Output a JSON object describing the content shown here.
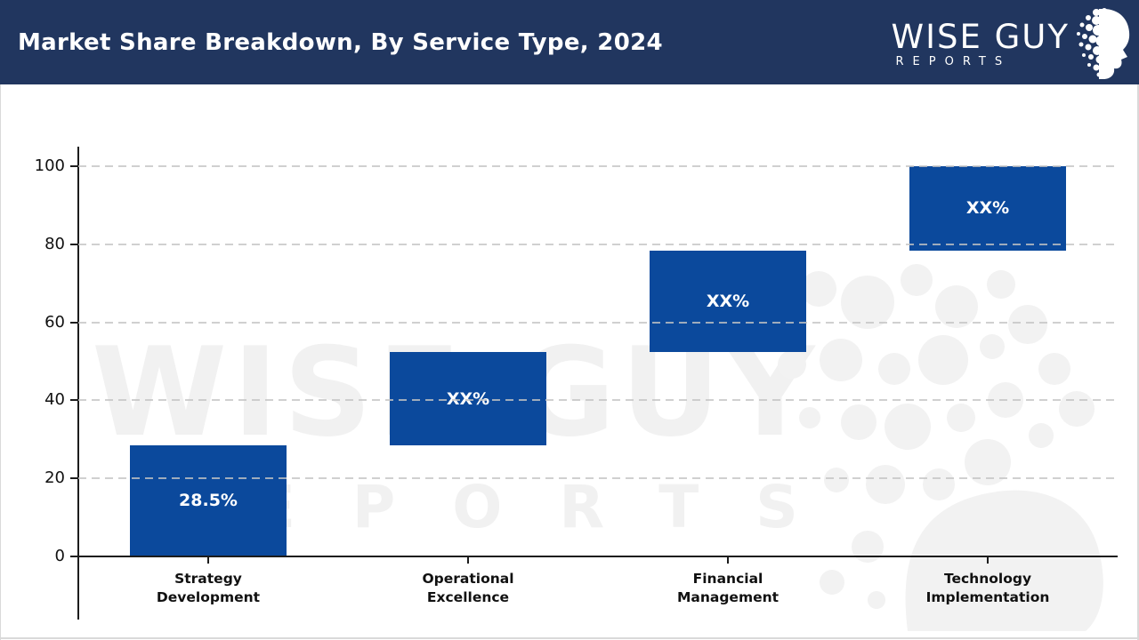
{
  "header": {
    "title": "Market Share Breakdown, By Service Type, 2024",
    "bg_color": "#21365f",
    "brand": {
      "line1": "WISE GUY",
      "line2": "REPORTS",
      "logo_icon": "dotted-head-profile"
    }
  },
  "watermark": {
    "line1": "WISE GUY",
    "line2": "REPORTS",
    "face_icon": "dotted-head-profile",
    "color": "#f1f1f1"
  },
  "chart_data": {
    "type": "bar",
    "subtype": "waterfall-stacked-segments",
    "title": "Market Share Breakdown, By Service Type, 2024",
    "categories": [
      "Strategy\nDevelopment",
      "Operational\nExcellence",
      "Financial\nManagement",
      "Technology\nImplementation"
    ],
    "segments": [
      {
        "category": "Strategy Development",
        "start": 0,
        "end": 28.5,
        "label": "28.5%"
      },
      {
        "category": "Operational Excellence",
        "start": 28.5,
        "end": 52.3,
        "label": "XX%"
      },
      {
        "category": "Financial Management",
        "start": 52.3,
        "end": 78.4,
        "label": "XX%"
      },
      {
        "category": "Technology Implementation",
        "start": 78.4,
        "end": 100,
        "label": "XX%"
      }
    ],
    "y_ticks": [
      0,
      20,
      40,
      60,
      80,
      100
    ],
    "ylim": [
      0,
      100
    ],
    "xlabel": "",
    "ylabel": "",
    "grid": "dashed-horizontal-on-top",
    "legend": "none",
    "bar_color": "#0b499c",
    "bar_label_color": "#ffffff",
    "axis_color": "#1c1c1c",
    "gridline_color": "#c4c4c4"
  }
}
